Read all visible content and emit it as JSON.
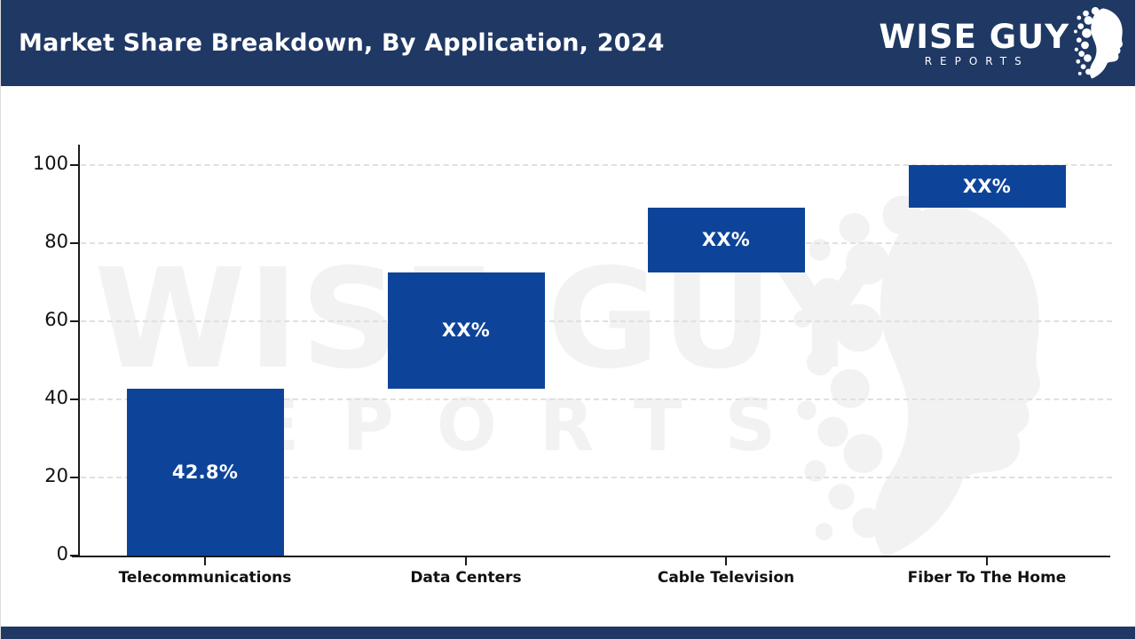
{
  "header": {
    "title": "Market Share Breakdown, By Application, 2024",
    "logo": {
      "name": "WISE GUY",
      "sub": "REPORTS"
    }
  },
  "watermark": {
    "line1": "WISE GUY",
    "line2": "REPORTS"
  },
  "colors": {
    "header_bg": "#1f3864",
    "footer_bg": "#1f3864",
    "bar": "#0d4499",
    "axis": "#1a1a1a",
    "grid": "#e0e0e0",
    "bar_label": "#ffffff",
    "tick_label": "#111111",
    "watermark": "#f2f2f2"
  },
  "chart_data": {
    "type": "bar",
    "subtype": "waterfall",
    "title": "Market Share Breakdown, By Application, 2024",
    "categories": [
      "Telecommunications",
      "Data Centers",
      "Cable Television",
      "Fiber To The Home"
    ],
    "segments": [
      {
        "category": "Telecommunications",
        "start": 0,
        "end": 42.8,
        "label": "42.8%"
      },
      {
        "category": "Data Centers",
        "start": 42.8,
        "end": 72.5,
        "label": "XX%"
      },
      {
        "category": "Cable Television",
        "start": 72.5,
        "end": 89.2,
        "label": "XX%"
      },
      {
        "category": "Fiber To The Home",
        "start": 89.2,
        "end": 100,
        "label": "XX%"
      }
    ],
    "yticks": [
      0,
      20,
      40,
      60,
      80,
      100
    ],
    "ylim": [
      0,
      105
    ],
    "xlabel": "",
    "ylabel": "",
    "grid": "horizontal-dashed",
    "legend": "none"
  }
}
